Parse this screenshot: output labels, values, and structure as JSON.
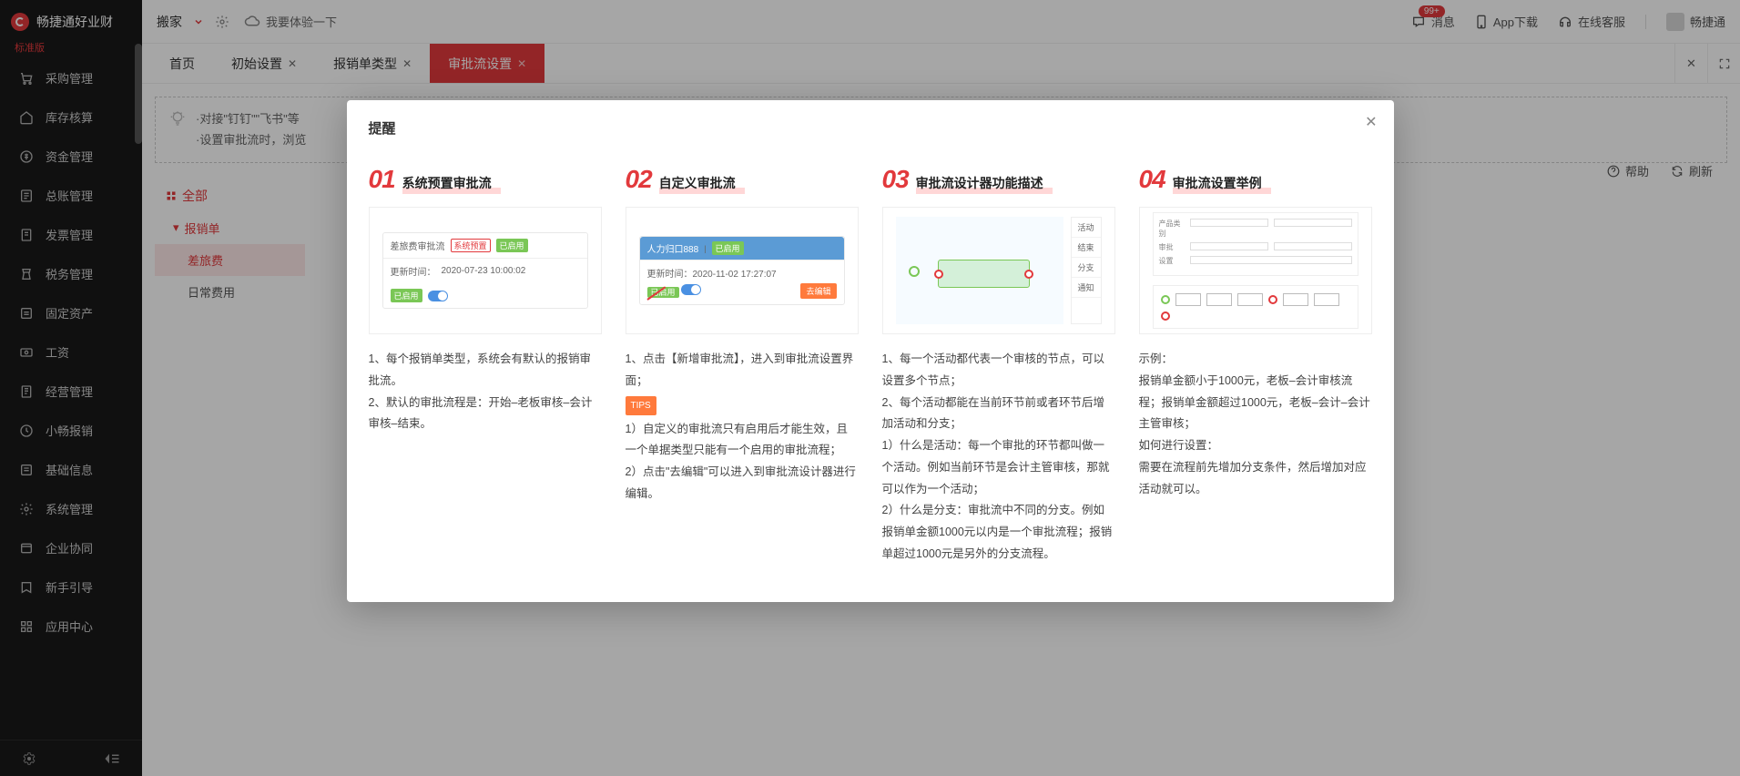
{
  "brand": {
    "name": "畅捷通好业财",
    "edition": "标准版"
  },
  "sidebar": {
    "items": [
      {
        "label": "采购管理"
      },
      {
        "label": "库存核算"
      },
      {
        "label": "资金管理"
      },
      {
        "label": "总账管理"
      },
      {
        "label": "发票管理"
      },
      {
        "label": "税务管理"
      },
      {
        "label": "固定资产"
      },
      {
        "label": "工资"
      },
      {
        "label": "经营管理"
      },
      {
        "label": "小畅报销"
      },
      {
        "label": "基础信息"
      },
      {
        "label": "系统管理"
      },
      {
        "label": "企业协同"
      },
      {
        "label": "新手引导"
      },
      {
        "label": "应用中心"
      }
    ]
  },
  "topbar": {
    "title": "搬家",
    "experience": "我要体验一下",
    "right": {
      "msg": "消息",
      "badge": "99+",
      "app": "App下载",
      "service": "在线客服",
      "user": "畅捷通"
    }
  },
  "tabs": [
    {
      "label": "首页",
      "closable": false,
      "active": false
    },
    {
      "label": "初始设置",
      "closable": true,
      "active": false
    },
    {
      "label": "报销单类型",
      "closable": true,
      "active": false
    },
    {
      "label": "审批流设置",
      "closable": true,
      "active": true
    }
  ],
  "hint": {
    "line1": "·对接\"钉钉\"\"飞书\"等",
    "line2": "·设置审批流时，浏览"
  },
  "pageTools": {
    "help": "帮助",
    "refresh": "刷新"
  },
  "sidePanel": {
    "all": "全部",
    "group": "报销单",
    "items": [
      {
        "label": "差旅费",
        "active": true
      },
      {
        "label": "日常费用",
        "active": false
      }
    ]
  },
  "modal": {
    "title": "提醒",
    "cards": [
      {
        "num": "01",
        "title": "系统预置审批流",
        "desc": "1、每个报销单类型，系统会有默认的报销审批流。<br>2、默认的审批流程是：开始–老板审核–会计审核–结束。"
      },
      {
        "num": "02",
        "title": "自定义审批流",
        "desc": "1、点击【新增审批流】，进入到审批流设置界面；<br><span class=\"tips\">TIPS</span><br>1）自定义的审批流只有启用后才能生效，且一个单据类型只能有一个启用的审批流程；<br>2）点击\"去编辑\"可以进入到审批流设计器进行编辑。"
      },
      {
        "num": "03",
        "title": "审批流设计器功能描述",
        "desc": "1、每一个活动都代表一个审核的节点，可以设置多个节点；<br>2、每个活动都能在当前环节前或者环节后增加活动和分支；<br>1）什么是活动：每一个审批的环节都叫做一个活动。例如当前环节是会计主管审核，那就可以作为一个活动；<br>2）什么是分支：审批流中不同的分支。例如报销单金额1000元以内是一个审批流程；报销单超过1000元是另外的分支流程。"
      },
      {
        "num": "04",
        "title": "审批流设置举例",
        "desc": "示例：<br>报销单金额小于1000元，老板–会计审核流程；报销单金额超过1000元，老板–会计–会计主管审核；<br>如何进行设置：<br>需要在流程前先增加分支条件，然后增加对应活动就可以。"
      }
    ],
    "thumbs": {
      "t1": {
        "title": "差旅费审批流",
        "tag": "系统预置",
        "state": "已启用",
        "time_lbl": "更新时间：",
        "time": "2020-07-23 10:00:02",
        "sw": "已启用"
      },
      "t2": {
        "title": "人力归口888",
        "state": "已启用",
        "time_lbl": "更新时间：",
        "time": "2020-11-02 17:27:07",
        "sw": "已启用",
        "btn": "去编辑"
      },
      "t3": {
        "menu": [
          "活动",
          "结束",
          "分支",
          "通知"
        ]
      },
      "t4": {
        "form_labels": [
          "产品类别",
          "审批",
          "设置"
        ],
        "boxes": 5
      }
    }
  }
}
